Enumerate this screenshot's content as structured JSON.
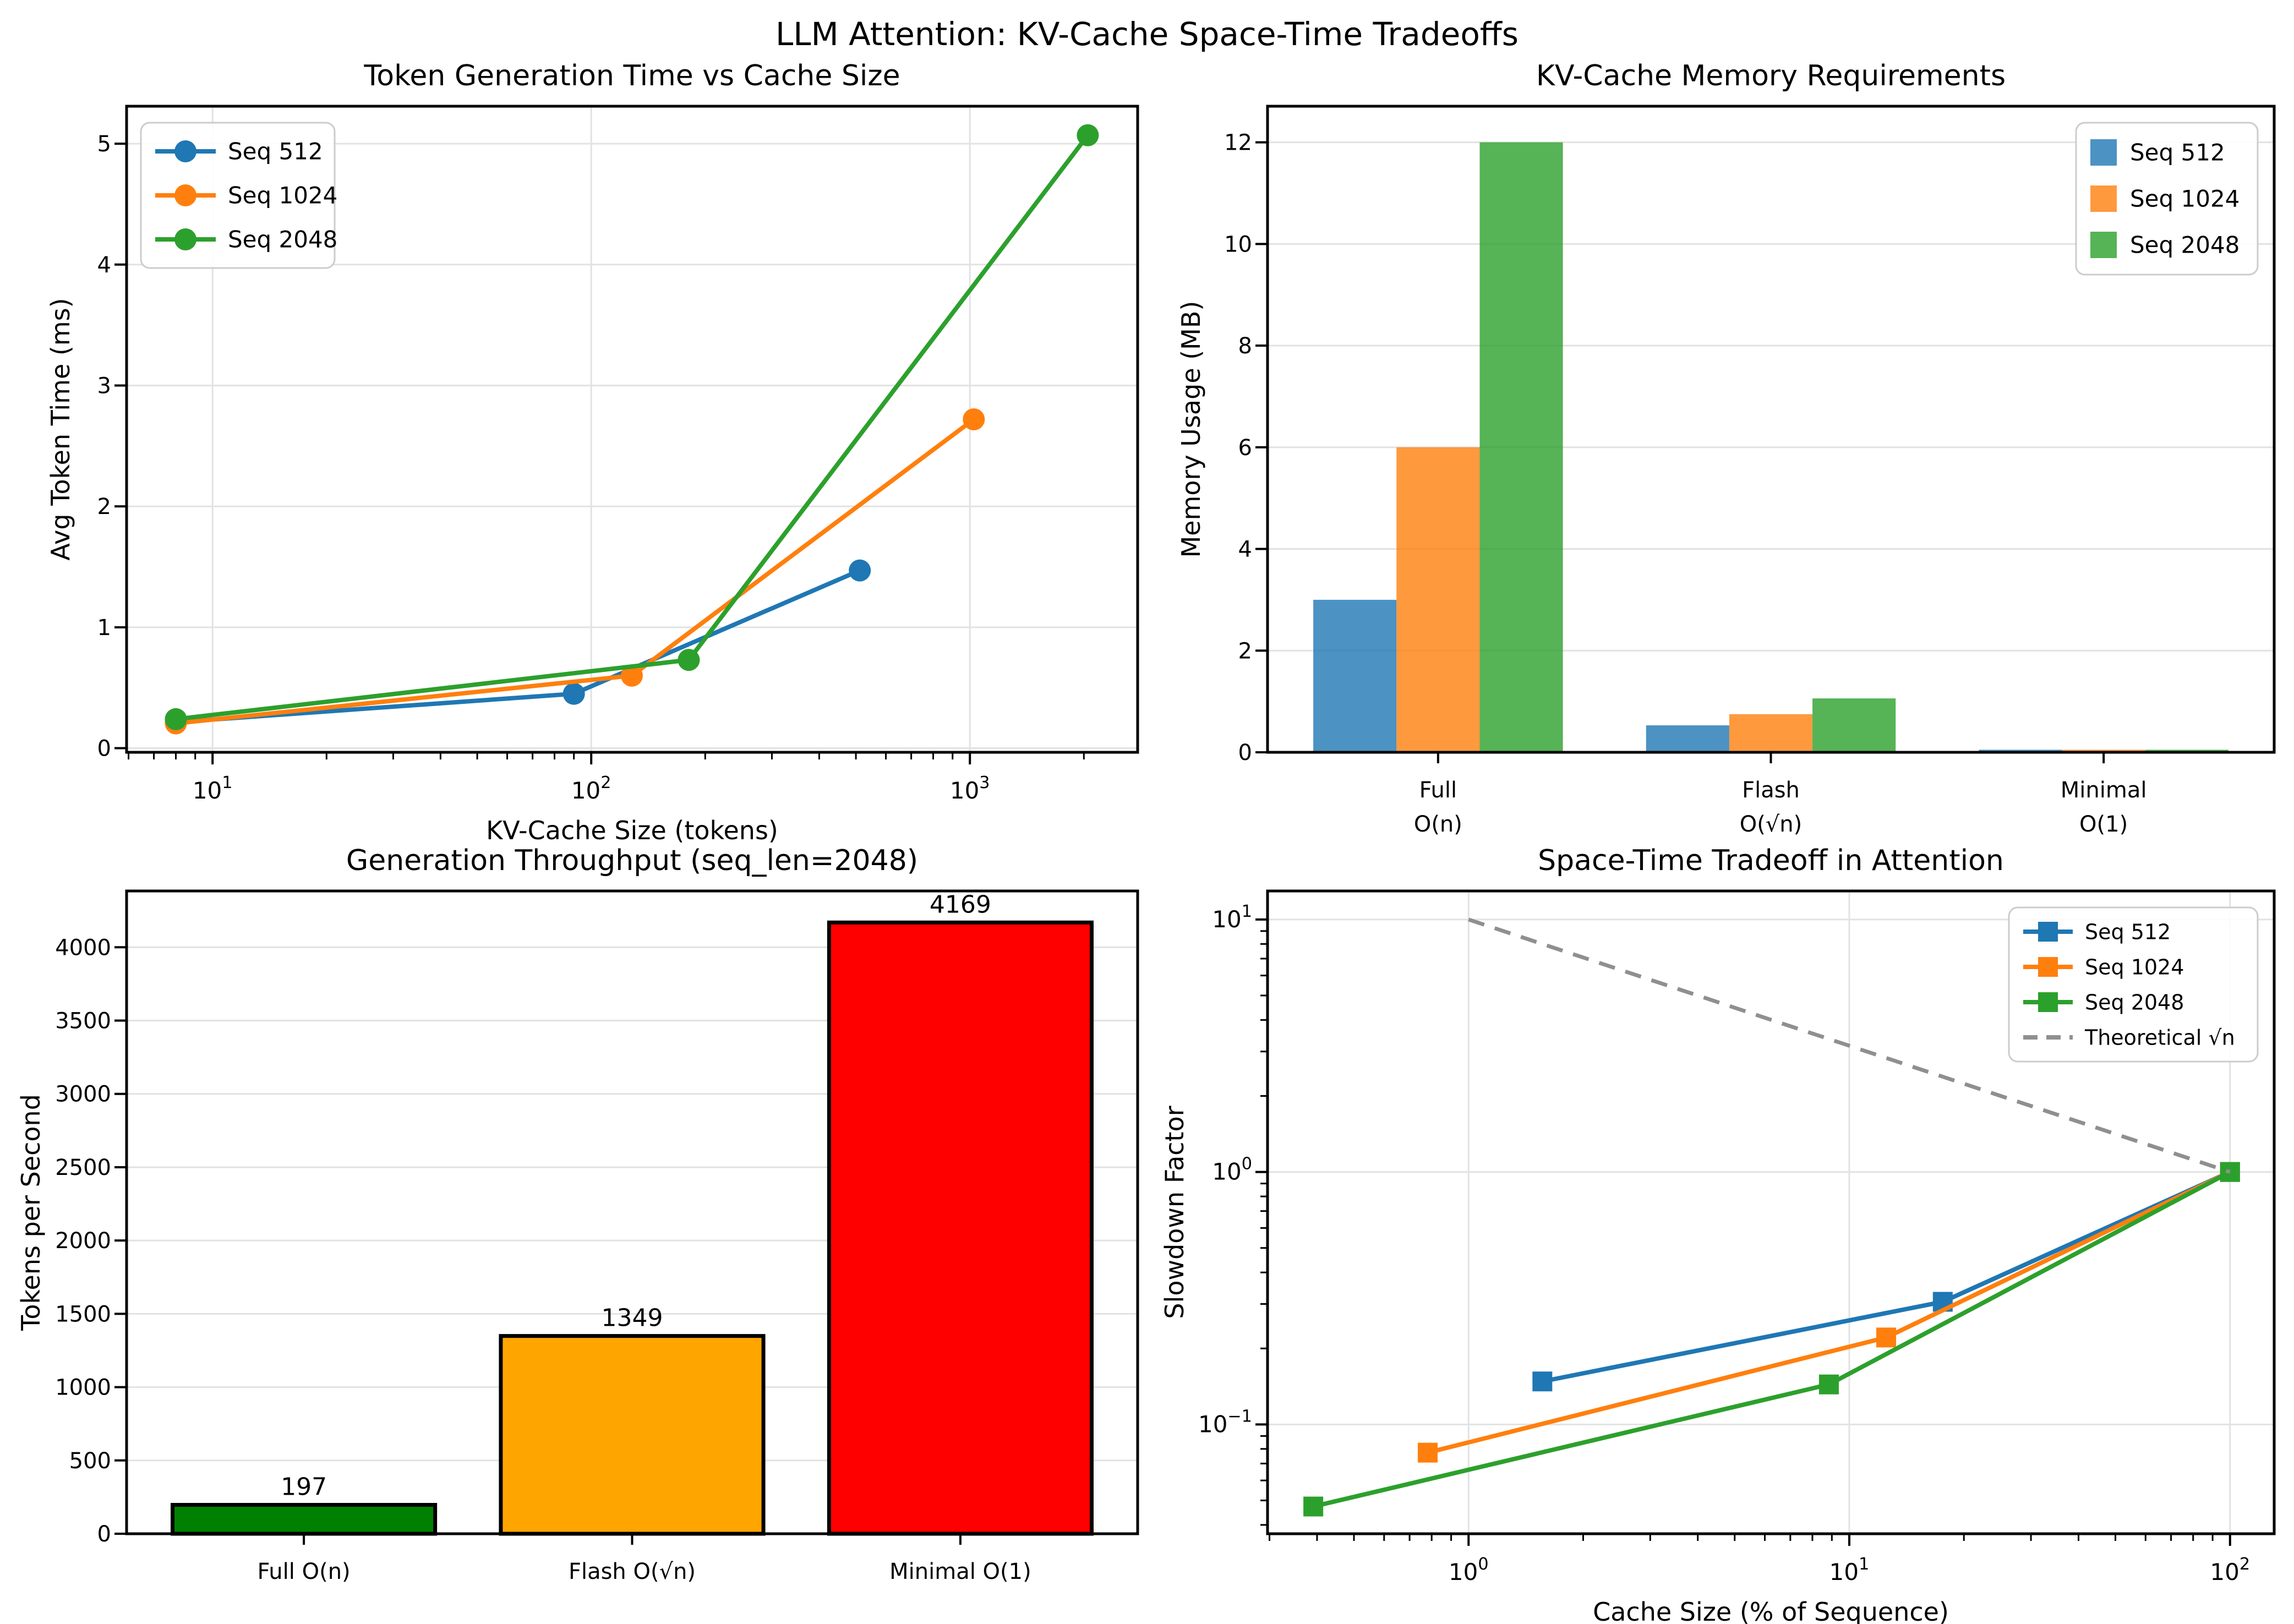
{
  "figure": {
    "suptitle": "LLM Attention: KV-Cache Space-Time Tradeoffs"
  },
  "colors": {
    "seq512": "#1f77b4",
    "seq1024": "#ff7f0e",
    "seq2048": "#2ca02c",
    "seq512_bar": "rgba(31,119,180,0.8)",
    "seq1024_bar": "rgba(255,127,14,0.8)",
    "seq2048_bar": "rgba(44,160,44,0.8)",
    "throughput_full": "#008000",
    "throughput_flash": "#ffa500",
    "throughput_minimal": "#ff0000",
    "theoretical": "#8f8f8f",
    "grid": "#e2e2e2",
    "spine": "#000000",
    "legend_border": "#cccccc"
  },
  "chart_data": [
    {
      "id": "token-time",
      "type": "line",
      "title": "Token Generation Time vs Cache Size",
      "xlabel": "KV-Cache Size (tokens)",
      "ylabel": "Avg Token Time (ms)",
      "x_scale": "log",
      "x_log_range": [
        0.773,
        3.443
      ],
      "x_ticks_exp": [
        1,
        2,
        3
      ],
      "y_scale": "linear",
      "y_range": [
        -0.034,
        5.31
      ],
      "y_ticks": [
        0,
        1,
        2,
        3,
        4,
        5
      ],
      "grid": {
        "x": true,
        "y": true
      },
      "series": [
        {
          "name": "Seq 512",
          "color": "seq512",
          "marker": "circle",
          "points": [
            [
              8,
              0.215
            ],
            [
              90,
              0.45
            ],
            [
              512,
              1.47
            ]
          ]
        },
        {
          "name": "Seq 1024",
          "color": "seq1024",
          "marker": "circle",
          "points": [
            [
              8,
              0.205
            ],
            [
              128,
              0.6
            ],
            [
              1024,
              2.72
            ]
          ]
        },
        {
          "name": "Seq 2048",
          "color": "seq2048",
          "marker": "circle",
          "points": [
            [
              8,
              0.24
            ],
            [
              181,
              0.73
            ],
            [
              2048,
              5.07
            ]
          ]
        }
      ],
      "legend": {
        "position": "top-left",
        "entries": [
          {
            "label": "Seq 512",
            "color": "seq512",
            "marker": "circle"
          },
          {
            "label": "Seq 1024",
            "color": "seq1024",
            "marker": "circle"
          },
          {
            "label": "Seq 2048",
            "color": "seq2048",
            "marker": "circle"
          }
        ]
      }
    },
    {
      "id": "memory",
      "type": "grouped_bar",
      "title": "KV-Cache Memory Requirements",
      "ylabel": "Memory Usage (MB)",
      "categories": [
        [
          "Full",
          "O(n)"
        ],
        [
          "Flash",
          "O(√n)"
        ],
        [
          "Minimal",
          "O(1)"
        ]
      ],
      "y_range": [
        0,
        12.71
      ],
      "y_ticks": [
        0,
        2,
        4,
        6,
        8,
        10,
        12
      ],
      "grid": {
        "y": true
      },
      "series": [
        {
          "name": "Seq 512",
          "color": "seq512_bar",
          "values": [
            3.0,
            0.53,
            0.05
          ]
        },
        {
          "name": "Seq 1024",
          "color": "seq1024_bar",
          "values": [
            6.0,
            0.75,
            0.05
          ]
        },
        {
          "name": "Seq 2048",
          "color": "seq2048_bar",
          "values": [
            12.0,
            1.06,
            0.05
          ]
        }
      ],
      "legend": {
        "position": "top-right",
        "entries": [
          {
            "label": "Seq 512",
            "color": "seq512_bar",
            "marker": "patch"
          },
          {
            "label": "Seq 1024",
            "color": "seq1024_bar",
            "marker": "patch"
          },
          {
            "label": "Seq 2048",
            "color": "seq2048_bar",
            "marker": "patch"
          }
        ]
      }
    },
    {
      "id": "throughput",
      "type": "bar",
      "title": "Generation Throughput (seq_len=2048)",
      "ylabel": "Tokens per Second",
      "categories": [
        "Full O(n)",
        "Flash O(√n)",
        "Minimal O(1)"
      ],
      "values": [
        197,
        1349,
        4169
      ],
      "value_labels": [
        "197",
        "1349",
        "4169"
      ],
      "bar_colors": [
        "throughput_full",
        "throughput_flash",
        "throughput_minimal"
      ],
      "bar_edge": "#000000",
      "y_range": [
        0,
        4384
      ],
      "y_ticks": [
        0,
        500,
        1000,
        1500,
        2000,
        2500,
        3000,
        3500,
        4000
      ],
      "grid": {
        "y": true
      }
    },
    {
      "id": "tradeoff",
      "type": "line",
      "title": "Space-Time Tradeoff in Attention",
      "xlabel": "Cache Size (% of Sequence)",
      "ylabel": "Slowdown Factor",
      "x_scale": "log",
      "x_log_range": [
        -0.528,
        2.116
      ],
      "x_ticks_exp": [
        0,
        1,
        2
      ],
      "y_scale": "log",
      "y_log_range": [
        -1.433,
        1.113
      ],
      "y_ticks_exp": [
        -1,
        0,
        1
      ],
      "grid": {
        "x": true,
        "y": true
      },
      "series": [
        {
          "name": "Seq 512",
          "color": "seq512",
          "marker": "square",
          "points": [
            [
              1.5625,
              0.148
            ],
            [
              17.6,
              0.306
            ],
            [
              100,
              1.0
            ]
          ]
        },
        {
          "name": "Seq 1024",
          "color": "seq1024",
          "marker": "square",
          "points": [
            [
              0.781,
              0.0773
            ],
            [
              12.5,
              0.221
            ],
            [
              100,
              1.0
            ]
          ]
        },
        {
          "name": "Seq 2048",
          "color": "seq2048",
          "marker": "square",
          "points": [
            [
              0.391,
              0.0473
            ],
            [
              8.84,
              0.144
            ],
            [
              100,
              1.0
            ]
          ]
        },
        {
          "name": "Theoretical √n",
          "color": "theoretical",
          "marker": "none",
          "dash": true,
          "points": [
            [
              1,
              10
            ],
            [
              100,
              1
            ]
          ]
        }
      ],
      "legend": {
        "position": "top-right",
        "entries": [
          {
            "label": "Seq 512",
            "color": "seq512",
            "marker": "square"
          },
          {
            "label": "Seq 1024",
            "color": "seq1024",
            "marker": "square"
          },
          {
            "label": "Seq 2048",
            "color": "seq2048",
            "marker": "square"
          },
          {
            "label": "Theoretical √n",
            "color": "theoretical",
            "marker": "dash"
          }
        ]
      }
    }
  ]
}
